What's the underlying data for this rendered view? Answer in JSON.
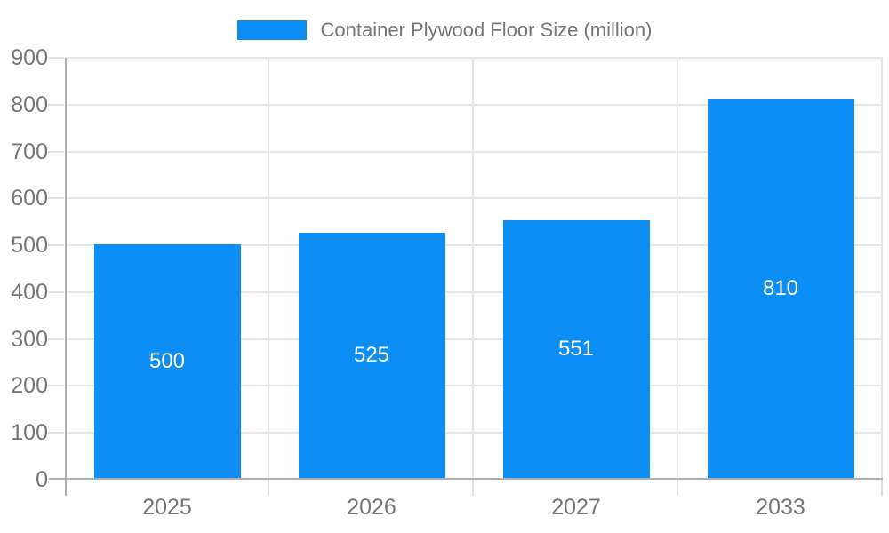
{
  "legend": {
    "series_label": "Container Plywood Floor Size (million)"
  },
  "chart_data": {
    "type": "bar",
    "title": "Container Plywood Floor Size (million)",
    "categories": [
      "2025",
      "2026",
      "2027",
      "2033"
    ],
    "values": [
      500,
      525,
      551,
      810
    ],
    "data_labels": [
      "500",
      "525",
      "551",
      "810"
    ],
    "xlabel": "",
    "ylabel": "",
    "ylim": [
      0,
      900
    ],
    "ytick_step": 100,
    "grid": true,
    "legend_position": "top",
    "colors": {
      "bar": "#0d8ef4",
      "bar_label": "#ffffff",
      "axis_text": "#757575",
      "axis_line": "#b0b0b0",
      "gridline": "#e6e6e6",
      "tick": "#e0e0e0",
      "background": "#ffffff"
    }
  }
}
